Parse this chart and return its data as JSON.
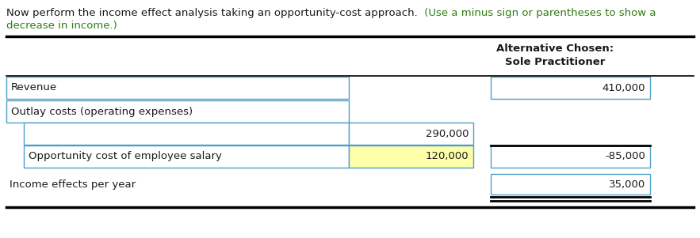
{
  "title_black": "Now perform the income effect analysis taking an opportunity-cost approach.",
  "title_green_part1": " (Use a minus sign or parentheses to show a",
  "title_green_part2": "decrease in income.)",
  "col_header_line1": "Alternative Chosen:",
  "col_header_line2": "Sole Practitioner",
  "footer_label": "Income effects per year",
  "footer_value": "35,000",
  "bg_color": "#ffffff",
  "box_border_color": "#4f9fc8",
  "yellow_highlight": "#ffffaa",
  "text_color": "#1a1a1a",
  "green_color": "#2e7d0e",
  "font_size": 9.5,
  "bold_font_size": 9.5
}
